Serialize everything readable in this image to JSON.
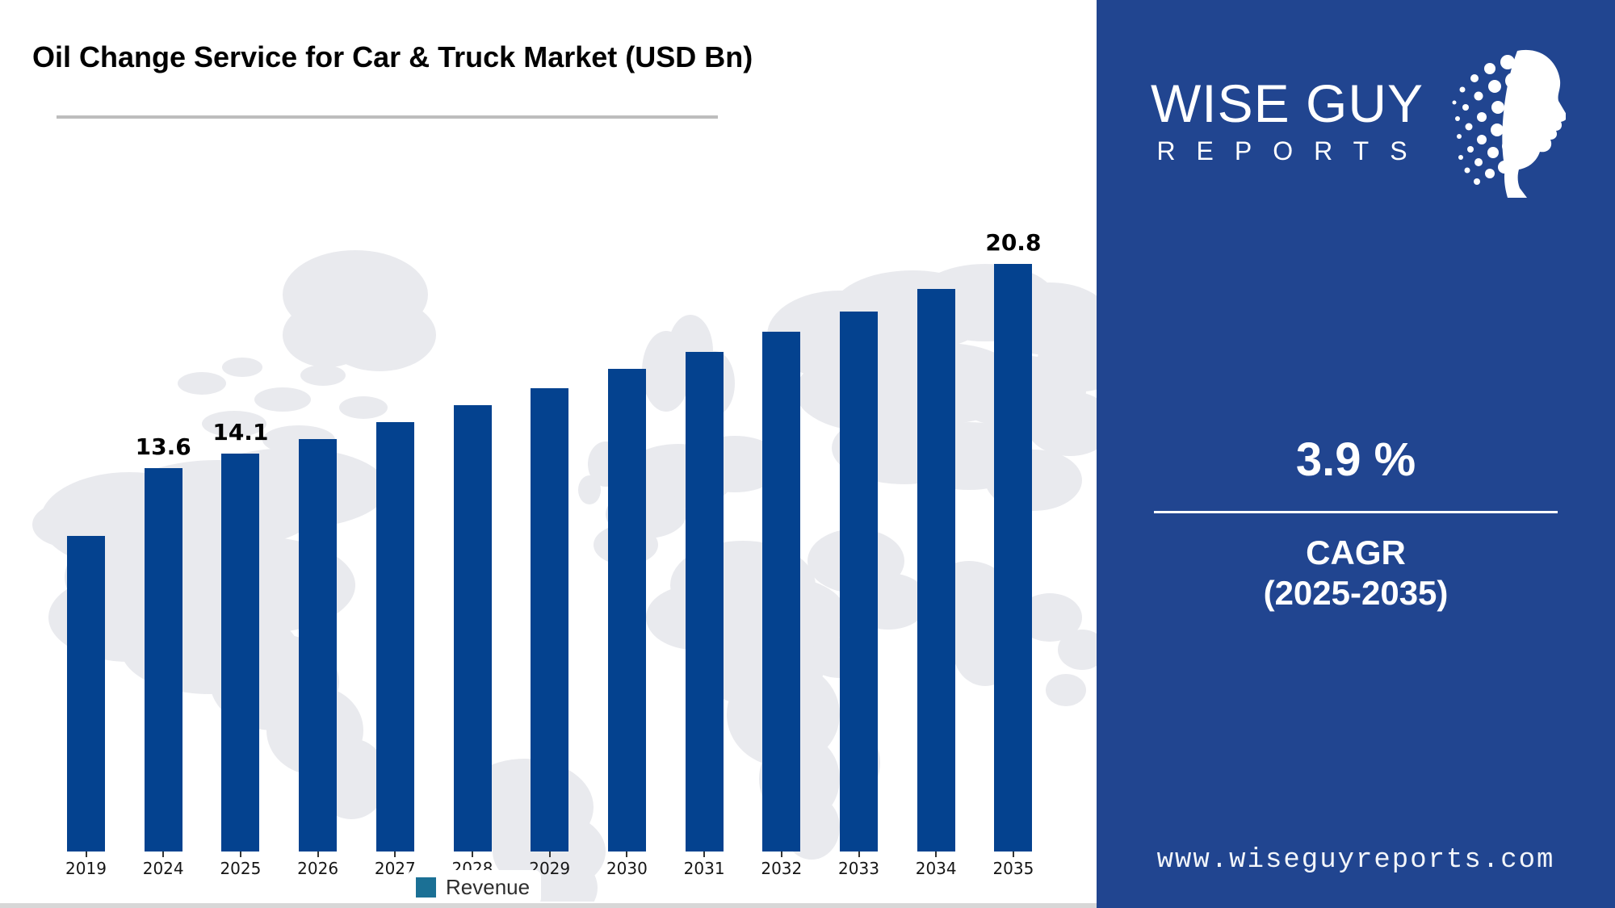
{
  "chart_data": {
    "type": "bar",
    "title": "Oil Change Service for Car & Truck Market (USD Bn)",
    "xlabel": "",
    "ylabel": "",
    "categories": [
      "2019",
      "2024",
      "2025",
      "2026",
      "2027",
      "2028",
      "2029",
      "2030",
      "2031",
      "2032",
      "2033",
      "2034",
      "2035"
    ],
    "values": [
      11.2,
      13.6,
      14.1,
      14.6,
      15.2,
      15.8,
      16.4,
      17.1,
      17.7,
      18.4,
      19.1,
      19.9,
      20.8
    ],
    "series_name": "Revenue",
    "data_labels": {
      "2024": "13.6",
      "2025": "14.1",
      "2035": "20.8"
    },
    "bar_color": "#04428f",
    "legend": {
      "label": "Revenue",
      "swatch_color": "#1b7095",
      "position": "bottom"
    },
    "gridlines": false
  },
  "sidebar": {
    "background_color": "#214590",
    "logo": {
      "line1": "WISE GUY",
      "line2": "REPORTS"
    },
    "cagr": {
      "value": "3.9 %",
      "label": "CAGR",
      "period": "(2025-2035)"
    },
    "website": "www.wiseguyreports.com"
  }
}
